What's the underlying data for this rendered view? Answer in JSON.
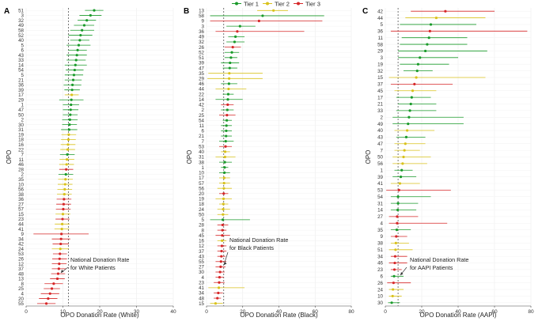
{
  "legend": {
    "items": [
      {
        "label": "Tier 1",
        "color": "#1a9a2a"
      },
      {
        "label": "Tier 2",
        "color": "#d9c21c"
      },
      {
        "label": "Tier 3",
        "color": "#d62728"
      }
    ]
  },
  "chart_data": [
    {
      "type": "scatter",
      "panel_label": "A",
      "xlabel": "OPO Donation Rate (White)",
      "ylabel": "OPO",
      "xlim": [
        0,
        40
      ],
      "xticks": [
        0,
        10,
        20,
        30,
        40
      ],
      "reference_line": {
        "x": 11.5,
        "label": "National Donation Rate for White Patients"
      },
      "grid": true,
      "categories": [
        "51",
        "3",
        "32",
        "49",
        "58",
        "52",
        "40",
        "5",
        "6",
        "43",
        "33",
        "14",
        "54",
        "5",
        "21",
        "36",
        "39",
        "17",
        "29",
        "1",
        "47",
        "50",
        "2",
        "30",
        "31",
        "19",
        "18",
        "16",
        "22",
        "7",
        "11",
        "46",
        "28",
        "2",
        "35",
        "10",
        "56",
        "38",
        "36",
        "27",
        "57",
        "15",
        "23",
        "44",
        "41",
        "9",
        "34",
        "42",
        "24",
        "53",
        "26",
        "12",
        "37",
        "48",
        "13",
        "8",
        "25",
        "4",
        "20",
        "55"
      ],
      "tiers": [
        1,
        1,
        1,
        1,
        1,
        1,
        1,
        1,
        1,
        1,
        1,
        1,
        1,
        1,
        1,
        1,
        1,
        2,
        1,
        1,
        1,
        1,
        1,
        1,
        1,
        2,
        2,
        2,
        2,
        1,
        2,
        2,
        3,
        1,
        2,
        2,
        2,
        2,
        3,
        3,
        3,
        2,
        3,
        2,
        2,
        3,
        3,
        3,
        2,
        3,
        3,
        3,
        3,
        3,
        3,
        3,
        3,
        3,
        3,
        3
      ],
      "estimates": [
        18.5,
        17.5,
        16.5,
        15.8,
        15.2,
        14.8,
        14.6,
        14.3,
        14.0,
        13.8,
        13.6,
        13.4,
        13.2,
        13.0,
        12.8,
        12.6,
        12.5,
        12.4,
        12.3,
        12.2,
        12.1,
        12.0,
        11.9,
        11.8,
        11.7,
        11.6,
        11.5,
        11.4,
        11.3,
        11.2,
        11.1,
        11.0,
        10.9,
        10.8,
        10.7,
        10.6,
        10.5,
        10.4,
        10.3,
        10.2,
        10.1,
        10.0,
        9.9,
        9.8,
        9.7,
        9.6,
        9.5,
        9.4,
        9.3,
        9.2,
        9.1,
        9.0,
        8.9,
        8.7,
        8.5,
        7.5,
        7.0,
        6.5,
        6.0,
        5.5
      ],
      "lower": [
        16.0,
        14.5,
        14.0,
        13.0,
        12.0,
        11.5,
        12.0,
        11.0,
        11.5,
        11.0,
        11.0,
        10.5,
        10.8,
        10.5,
        10.5,
        10.2,
        10.4,
        10.5,
        9.0,
        10.0,
        10.0,
        10.0,
        9.8,
        9.8,
        9.5,
        9.6,
        9.5,
        9.4,
        9.3,
        9.2,
        9.1,
        9.0,
        9.0,
        8.8,
        8.7,
        8.6,
        8.5,
        8.4,
        8.3,
        8.2,
        8.1,
        8.0,
        8.0,
        7.8,
        7.7,
        2.0,
        7.0,
        7.2,
        7.0,
        7.3,
        7.1,
        7.0,
        7.0,
        6.8,
        6.5,
        5.0,
        4.8,
        4.0,
        3.5,
        3.0
      ],
      "upper": [
        21.0,
        20.5,
        19.0,
        18.5,
        18.5,
        18.0,
        17.2,
        17.5,
        16.5,
        16.5,
        16.2,
        16.5,
        15.6,
        15.5,
        15.1,
        15.0,
        14.6,
        14.3,
        15.6,
        14.4,
        14.2,
        14.0,
        14.0,
        13.8,
        13.9,
        13.6,
        13.5,
        13.4,
        13.3,
        13.2,
        13.1,
        13.0,
        12.8,
        12.8,
        12.7,
        12.6,
        12.5,
        12.4,
        12.3,
        12.2,
        12.1,
        12.0,
        11.8,
        11.8,
        11.7,
        17.0,
        12.0,
        11.6,
        11.6,
        11.1,
        11.1,
        11.0,
        10.8,
        10.6,
        10.5,
        10.0,
        9.2,
        9.0,
        8.5,
        8.0
      ]
    },
    {
      "type": "scatter",
      "panel_label": "B",
      "xlabel": "OPO Donation Rate (Black)",
      "ylabel": "OPO",
      "xlim": [
        0,
        80
      ],
      "xticks": [
        0,
        20,
        40,
        60,
        80
      ],
      "reference_line": {
        "x": 9.5,
        "label": "National Donation Rate for Black Patients"
      },
      "grid": true,
      "categories": [
        "13",
        "58",
        "9",
        "3",
        "36",
        "49",
        "32",
        "26",
        "52",
        "51",
        "39",
        "47",
        "35",
        "29",
        "46",
        "44",
        "22",
        "14",
        "42",
        "2",
        "25",
        "54",
        "11",
        "6",
        "21",
        "7",
        "53",
        "40",
        "31",
        "38",
        "1",
        "10",
        "17",
        "57",
        "56",
        "20",
        "19",
        "18",
        "24",
        "50",
        "5",
        "28",
        "8",
        "45",
        "16",
        "12",
        "37",
        "43",
        "55",
        "27",
        "30",
        "4",
        "23",
        "41",
        "34",
        "48",
        "15"
      ],
      "tiers": [
        2,
        1,
        3,
        1,
        3,
        1,
        1,
        3,
        1,
        1,
        1,
        1,
        2,
        2,
        1,
        2,
        1,
        1,
        3,
        1,
        3,
        1,
        1,
        1,
        1,
        1,
        3,
        2,
        2,
        1,
        1,
        1,
        2,
        2,
        2,
        3,
        2,
        2,
        2,
        2,
        1,
        3,
        3,
        3,
        2,
        3,
        3,
        3,
        3,
        3,
        3,
        3,
        3,
        2,
        3,
        3,
        2
      ],
      "estimates": [
        37.0,
        31.0,
        29.0,
        18.5,
        17.0,
        16.0,
        15.5,
        14.5,
        14.0,
        13.5,
        13.0,
        12.8,
        12.6,
        12.5,
        12.4,
        12.2,
        12.0,
        11.8,
        11.7,
        11.5,
        11.3,
        11.2,
        11.0,
        10.9,
        10.8,
        10.6,
        10.5,
        10.3,
        10.2,
        10.1,
        10.0,
        9.9,
        9.8,
        9.7,
        9.6,
        9.5,
        9.4,
        9.3,
        9.2,
        9.1,
        9.0,
        8.9,
        8.8,
        8.7,
        8.6,
        8.5,
        8.3,
        8.2,
        8.0,
        7.8,
        7.5,
        7.2,
        7.0,
        6.8,
        6.5,
        6.0,
        5.0
      ],
      "lower": [
        28.0,
        2.0,
        2.0,
        11.0,
        5.0,
        12.0,
        11.0,
        10.0,
        10.0,
        10.0,
        8.0,
        9.0,
        1.0,
        0.5,
        8.0,
        5.0,
        9.0,
        5.0,
        8.0,
        8.0,
        7.0,
        9.0,
        8.0,
        8.0,
        8.0,
        7.0,
        7.0,
        8.0,
        5.0,
        7.0,
        8.0,
        7.0,
        7.0,
        7.0,
        6.0,
        7.0,
        5.0,
        7.0,
        6.0,
        6.0,
        2.0,
        6.0,
        6.0,
        5.0,
        6.0,
        6.0,
        6.0,
        6.0,
        5.0,
        5.0,
        5.0,
        5.0,
        4.0,
        1.0,
        4.0,
        4.0,
        2.0
      ],
      "upper": [
        45.0,
        65.0,
        64.0,
        27.0,
        54.0,
        21.0,
        21.0,
        19.0,
        18.0,
        17.0,
        18.0,
        17.0,
        31.0,
        31.0,
        17.0,
        22.0,
        15.0,
        20.0,
        15.0,
        15.0,
        16.0,
        14.0,
        14.0,
        14.0,
        14.0,
        15.0,
        14.0,
        13.0,
        16.0,
        14.0,
        12.0,
        13.0,
        13.0,
        13.0,
        14.0,
        12.0,
        14.0,
        12.0,
        13.0,
        12.0,
        24.0,
        12.0,
        11.0,
        13.0,
        11.0,
        11.0,
        11.0,
        10.5,
        11.0,
        10.5,
        10.0,
        9.5,
        10.0,
        21.0,
        9.0,
        8.0,
        9.0
      ]
    },
    {
      "type": "scatter",
      "panel_label": "C",
      "xlabel": "OPO Donation Rate (AAPI)",
      "ylabel": "OPO",
      "xlim": [
        0,
        80
      ],
      "xticks": [
        0,
        20,
        40,
        60,
        80
      ],
      "reference_line": {
        "x": 7.0,
        "label": "National Donation Rate for AAPI Patients"
      },
      "grid": true,
      "categories": [
        "42",
        "44",
        "5",
        "36",
        "11",
        "58",
        "29",
        "3",
        "19",
        "32",
        "15",
        "37",
        "45",
        "17",
        "21",
        "33",
        "2",
        "49",
        "40",
        "43",
        "47",
        "7",
        "50",
        "56",
        "1",
        "39",
        "41",
        "53",
        "54",
        "31",
        "14",
        "27",
        "4",
        "35",
        "9",
        "38",
        "51",
        "34",
        "46",
        "23",
        "6",
        "26",
        "24",
        "10",
        "30"
      ],
      "tiers": [
        3,
        2,
        1,
        3,
        1,
        1,
        1,
        1,
        1,
        1,
        2,
        3,
        2,
        1,
        1,
        1,
        1,
        1,
        2,
        1,
        2,
        2,
        2,
        2,
        1,
        1,
        2,
        3,
        1,
        1,
        1,
        3,
        3,
        1,
        3,
        2,
        2,
        3,
        3,
        3,
        1,
        3,
        2,
        2,
        1
      ],
      "estimates": [
        33.0,
        28.0,
        25.0,
        24.5,
        24.0,
        23.0,
        22.0,
        19.0,
        18.0,
        17.5,
        17.0,
        16.0,
        15.0,
        14.5,
        14.0,
        13.5,
        13.0,
        12.5,
        12.0,
        11.5,
        11.0,
        10.5,
        10.0,
        9.5,
        9.0,
        8.5,
        8.0,
        7.5,
        7.0,
        7.0,
        6.8,
        6.5,
        6.5,
        6.3,
        6.0,
        5.8,
        5.6,
        5.4,
        5.2,
        5.0,
        4.8,
        4.5,
        4.2,
        4.0,
        3.5
      ],
      "lower": [
        14.0,
        11.0,
        8.0,
        3.0,
        9.0,
        8.0,
        7.0,
        7.0,
        8.0,
        10.0,
        2.0,
        3.0,
        5.0,
        6.0,
        7.0,
        6.0,
        4.0,
        4.0,
        5.0,
        6.0,
        5.0,
        5.0,
        4.0,
        4.0,
        5.0,
        4.0,
        3.0,
        0.5,
        3.0,
        3.0,
        3.0,
        2.0,
        2.0,
        3.0,
        3.0,
        3.0,
        2.0,
        3.0,
        2.0,
        3.0,
        3.0,
        1.0,
        2.0,
        2.0,
        1.5
      ],
      "upper": [
        60.0,
        55.0,
        50.0,
        78.0,
        45.0,
        45.0,
        56.0,
        40.0,
        35.0,
        26.0,
        55.0,
        37.0,
        28.0,
        25.0,
        28.0,
        28.0,
        43.0,
        43.0,
        27.0,
        22.0,
        22.0,
        19.0,
        25.0,
        23.0,
        15.0,
        17.0,
        19.0,
        36.0,
        25.0,
        18.0,
        17.0,
        18.0,
        34.0,
        14.0,
        12.0,
        13.0,
        15.0,
        12.0,
        12.0,
        9.0,
        10.0,
        14.0,
        10.0,
        9.0,
        8.0
      ]
    }
  ]
}
